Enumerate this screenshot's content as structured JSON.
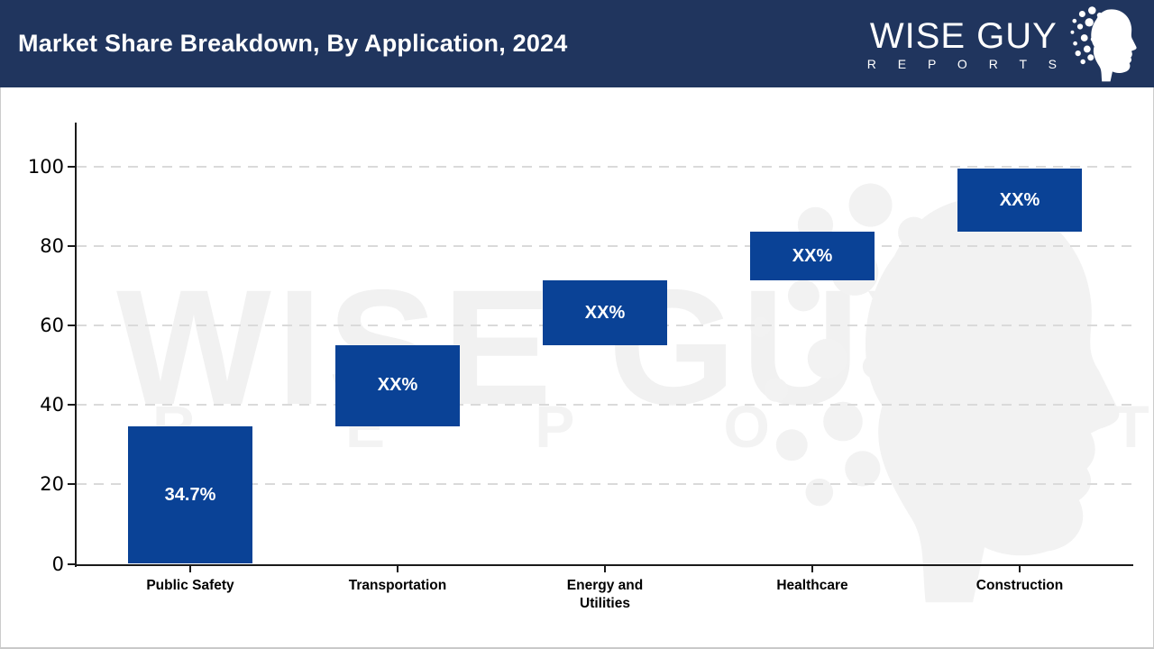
{
  "header": {
    "title": "Market Share Breakdown, By Application, 2024",
    "bg_color": "#20355e",
    "logo": {
      "line1": "WISE GUY",
      "line2": "REPORTS"
    }
  },
  "watermark": {
    "line1": "WISE GUY",
    "line2": "REPORTS"
  },
  "chart_data": {
    "type": "bar",
    "subtype": "waterfall-floating-bars",
    "title": "Market Share Breakdown, By Application, 2024",
    "categories": [
      "Public Safety",
      "Transportation",
      "Energy and Utilities",
      "Healthcare",
      "Construction"
    ],
    "segments": [
      {
        "category": "Public Safety",
        "start": 0,
        "end": 34.7,
        "label": "34.7%"
      },
      {
        "category": "Transportation",
        "start": 34.7,
        "end": 55.0,
        "label": "XX%"
      },
      {
        "category": "Energy and Utilities",
        "start": 55.0,
        "end": 71.4,
        "label": "XX%"
      },
      {
        "category": "Healthcare",
        "start": 71.4,
        "end": 83.6,
        "label": "XX%"
      },
      {
        "category": "Construction",
        "start": 83.6,
        "end": 99.5,
        "label": "XX%"
      }
    ],
    "yticks": [
      0,
      20,
      40,
      60,
      80,
      100
    ],
    "ylim": [
      0,
      111
    ],
    "xlabel": "",
    "ylabel": "",
    "bar_color": "#0a4296",
    "grid": "horizontal-dashed",
    "gridline_color": "#dadada",
    "legend": "none"
  }
}
